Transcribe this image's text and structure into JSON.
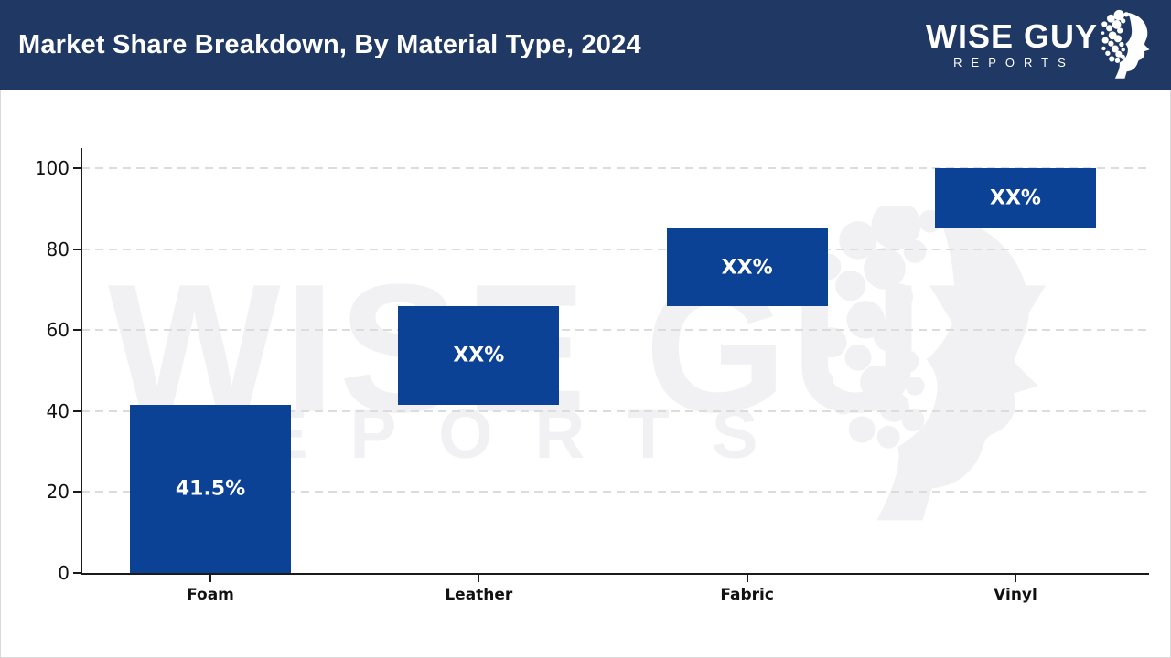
{
  "header": {
    "title": "Market Share Breakdown, By Material Type, 2024",
    "bg_color": "#1f3864",
    "logo": {
      "line1": "WISE GUY",
      "line2": "REPORTS"
    }
  },
  "watermark": {
    "line1": "WISE GUY",
    "line2": "REPORTS"
  },
  "chart_data": {
    "type": "bar",
    "subtype": "waterfall",
    "title": "Market Share Breakdown, By Material Type, 2024",
    "categories": [
      "Foam",
      "Leather",
      "Fabric",
      "Vinyl"
    ],
    "segments": [
      {
        "category": "Foam",
        "start": 0,
        "end": 41.5,
        "label": "41.5%"
      },
      {
        "category": "Leather",
        "start": 41.5,
        "end": 66,
        "label": "XX%"
      },
      {
        "category": "Fabric",
        "start": 66,
        "end": 85,
        "label": "XX%"
      },
      {
        "category": "Vinyl",
        "start": 85,
        "end": 100,
        "label": "XX%"
      }
    ],
    "values_delta": [
      41.5,
      24.5,
      19,
      15
    ],
    "ylim": [
      0,
      105
    ],
    "yticks": [
      0,
      20,
      40,
      60,
      80,
      100
    ],
    "xlabel": "",
    "ylabel": "",
    "grid": "horizontal-dashed",
    "legend": "none",
    "bar_color": "#0b4296",
    "bar_label_color": "#ffffff",
    "axis_color": "#1a1a1a",
    "gridline_color": "#dcdcdc"
  }
}
